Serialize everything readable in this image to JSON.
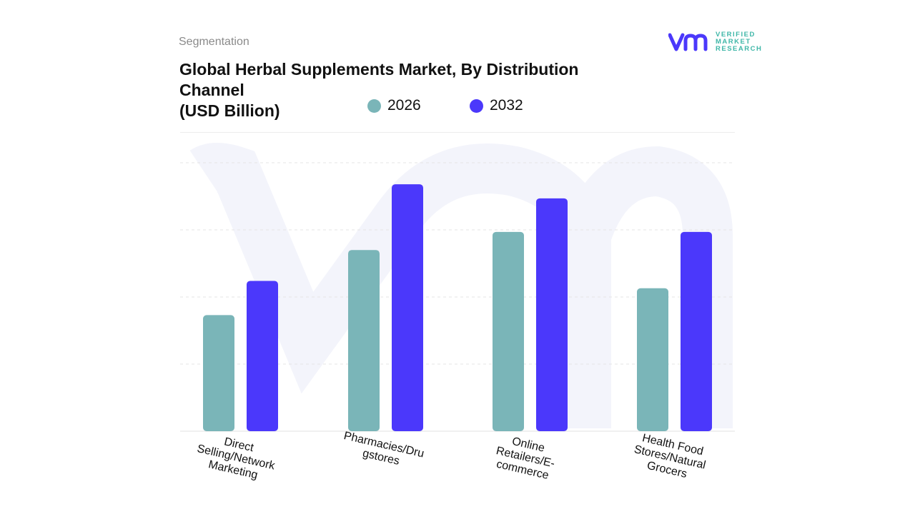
{
  "header": {
    "segment_label": "Segmentation",
    "title": "Global Herbal Supplements Market, By Distribution Channel\n(USD Billion)"
  },
  "logo": {
    "line1": "VERIFIED",
    "line2": "MARKET",
    "line3": "RESEARCH"
  },
  "colors": {
    "2026": "#7ab5b8",
    "2032": "#4b38fb",
    "grid": "#e4e4e4",
    "watermark": "#f3f4fb"
  },
  "chart_data": {
    "type": "bar",
    "title": "Global Herbal Supplements Market, By Distribution Channel (USD Billion)",
    "categories": [
      "Direct Selling/Network Marketing",
      "Pharmacies/Drugstores",
      "Online Retailers/E-commerce",
      "Health Food Stores/Natural Grocers"
    ],
    "category_labels": [
      "Direct\nSelling/Network\nMarketing",
      "Pharmacies/Dru\ngstores",
      "Online\nRetailers/E-\ncommerce",
      "Health Food\nStores/Natural\nGrocers"
    ],
    "series": [
      {
        "name": "2026",
        "values": [
          1.73,
          2.7,
          2.97,
          2.13
        ]
      },
      {
        "name": "2032",
        "values": [
          2.24,
          3.68,
          3.47,
          2.97
        ]
      }
    ],
    "ylim": [
      0,
      4
    ],
    "y_ticks_shown": false,
    "grid": true,
    "legend": "top"
  }
}
